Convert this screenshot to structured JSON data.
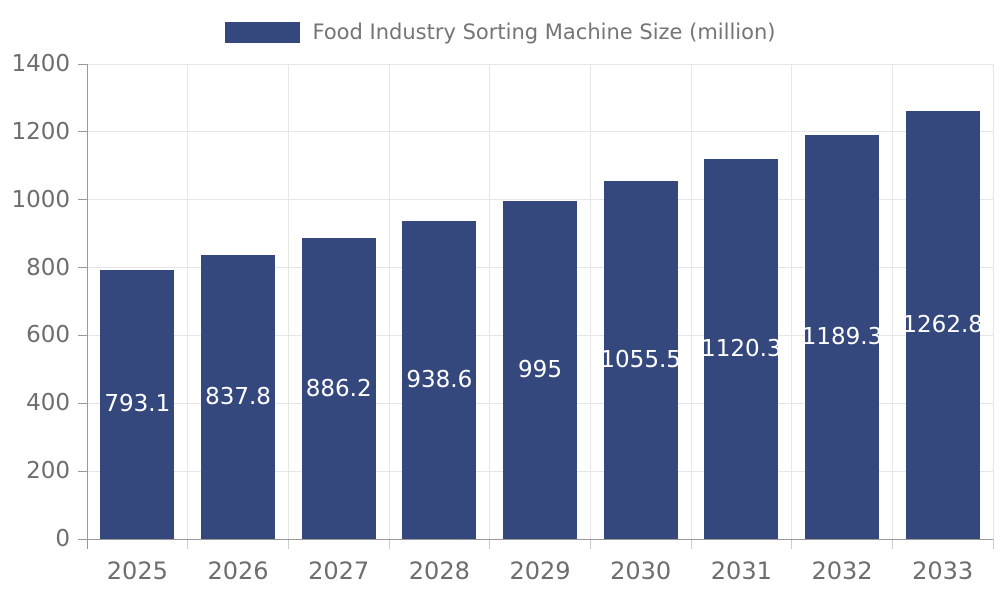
{
  "legend": {
    "series_label": "Food Industry Sorting Machine Size (million)"
  },
  "colors": {
    "bar": "#35487E",
    "data_label": "#FFFFFF",
    "legend_text": "#757575",
    "axis_text": "#6E6E6E",
    "grid_line": "#E6E6E6",
    "axis_line": "#999999",
    "x_tick": "#CCCCCC"
  },
  "chart_data": {
    "type": "bar",
    "title": "Food Industry Sorting Machine Size (million)",
    "categories": [
      "2025",
      "2026",
      "2027",
      "2028",
      "2029",
      "2030",
      "2031",
      "2032",
      "2033"
    ],
    "series": [
      {
        "name": "Food Industry Sorting Machine Size (million)",
        "values": [
          793.1,
          837.8,
          886.2,
          938.6,
          995,
          1055.5,
          1120.3,
          1189.3,
          1262.8
        ],
        "labels": [
          "793.1",
          "837.8",
          "886.2",
          "938.6",
          "995",
          "1055.5",
          "1120.3",
          "1189.3",
          "1262.8"
        ]
      }
    ],
    "xlabel": "",
    "ylabel": "",
    "ylim": [
      0,
      1400
    ],
    "ytick_interval": 200,
    "yticks": [
      0,
      200,
      400,
      600,
      800,
      1000,
      1200,
      1400
    ],
    "grid": true,
    "legend_position": "top",
    "bar_label_position": "inside-center"
  }
}
